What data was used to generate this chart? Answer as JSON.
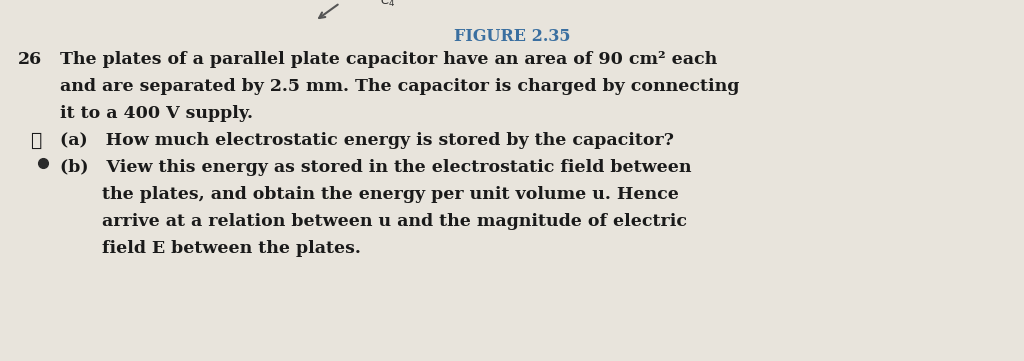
{
  "background_color": "#e8e4dc",
  "title": "FIGURE 2.35",
  "title_color": "#3a6fa0",
  "title_fontsize": 11.5,
  "number_label": "26",
  "body_fontsize": 12.5,
  "body_color": "#1a1a1a",
  "line1": "The plates of a parallel plate capacitor have an area of 90 cm² each",
  "line2": "and are separated by 2.5 mm. The capacitor is charged by connecting",
  "line3": "it to a 400 V supply.",
  "line_a": "(a)   How much electrostatic energy is stored by the capacitor?",
  "line_b1": "(b)   View this energy as stored in the electrostatic field between",
  "line_b2": "       the plates, and obtain the energy per unit volume u. Hence",
  "line_b3": "       arrive at a relation between u and the magnitude of electric",
  "line_b4": "       field E between the plates."
}
